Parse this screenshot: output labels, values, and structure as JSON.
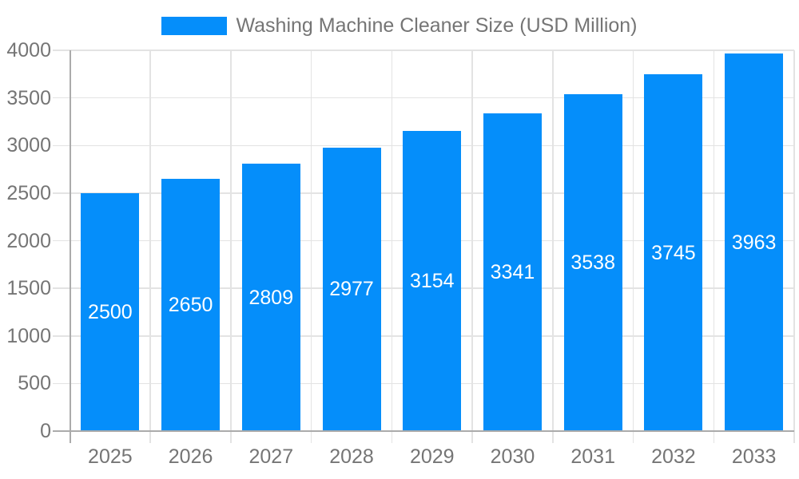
{
  "chart_data": {
    "type": "bar",
    "title": "Washing Machine Cleaner Size (USD Million)",
    "legend_position": "top-center",
    "categories": [
      "2025",
      "2026",
      "2027",
      "2028",
      "2029",
      "2030",
      "2031",
      "2032",
      "2033"
    ],
    "values": [
      2500,
      2650,
      2809,
      2977,
      3154,
      3341,
      3538,
      3745,
      3963
    ],
    "series": [
      {
        "name": "Washing Machine Cleaner Size (USD Million)",
        "values": [
          2500,
          2650,
          2809,
          2977,
          3154,
          3341,
          3538,
          3745,
          3963
        ]
      }
    ],
    "xlabel": "",
    "ylabel": "",
    "ylim": [
      0,
      4000
    ],
    "yticks": [
      0,
      500,
      1000,
      1500,
      2000,
      2500,
      3000,
      3500,
      4000
    ],
    "grid": "horizontal and vertical gridlines on",
    "bar_value_labels": "shown in white, centered inside each bar",
    "colors": {
      "bar": "#058efa",
      "bar_label_text": "#ffffff",
      "axis_text": "#757575",
      "grid_line": "#e3e3e3",
      "axis_line": "#ababab",
      "background": "#ffffff"
    }
  }
}
